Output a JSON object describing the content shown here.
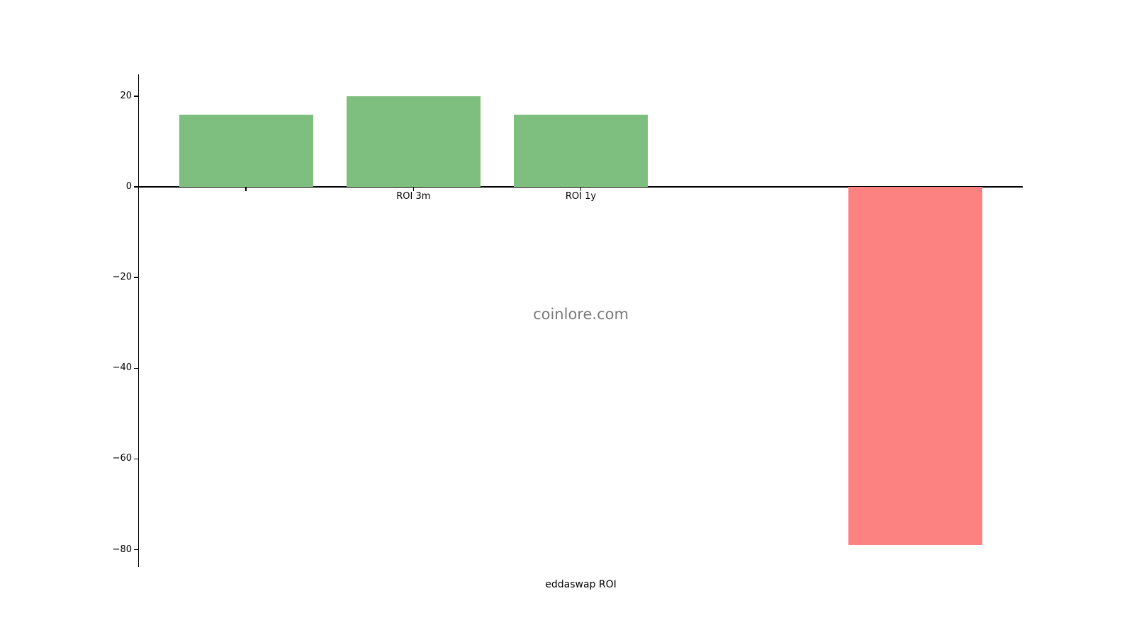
{
  "figure": {
    "background": "#ffffff"
  },
  "chart_data": {
    "type": "bar",
    "title": "eddaswap ROI",
    "watermark": "coinlore.com",
    "categories": [
      "",
      "ROI 3m",
      "ROI 1y",
      "",
      ""
    ],
    "values": [
      15.9,
      19.9,
      15.9,
      null,
      -78.9
    ],
    "visible_x_tick_slots": [
      0,
      1,
      2
    ],
    "yticks": [
      20,
      0,
      -20,
      -40,
      -60,
      -80
    ],
    "ytick_labels": [
      "20",
      "0",
      "−20",
      "−40",
      "−60",
      "−80"
    ],
    "xlim": [
      -0.64,
      4.64
    ],
    "ylim": [
      -83.8,
      24.8
    ],
    "bar_width_slots": 0.8,
    "grid": false,
    "legend": null,
    "xlabel": "eddaswap ROI",
    "ylabel": "",
    "colors": {
      "positive_bar": "#7ebe7e",
      "negative_bar": "#fc8181",
      "axis": "#000000",
      "tick_label": "#000000",
      "watermark": "#7a7a7a",
      "background": "#ffffff"
    }
  }
}
